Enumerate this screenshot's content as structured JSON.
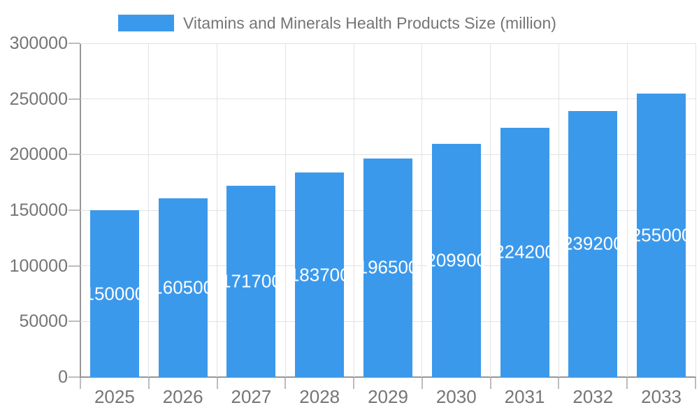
{
  "chart_data": {
    "type": "bar",
    "title": "Vitamins and Minerals Health Products Size (million)",
    "xlabel": "",
    "ylabel": "",
    "categories": [
      "2025",
      "2026",
      "2027",
      "2028",
      "2029",
      "2030",
      "2031",
      "2032",
      "2033"
    ],
    "values": [
      150000,
      160500,
      171700,
      183700,
      196500,
      209900,
      224200,
      239200,
      255000
    ],
    "bar_labels": [
      "150000",
      "160500",
      "171700",
      "183700",
      "196500",
      "209900",
      "224200",
      "239200",
      "255000"
    ],
    "ylim": [
      0,
      300000
    ],
    "ytick_step": 50000,
    "yticks": [
      "0",
      "50000",
      "100000",
      "150000",
      "200000",
      "250000",
      "300000"
    ],
    "grid": true,
    "legend_position": "top-center",
    "legend_entries": [
      {
        "label": "Vitamins and Minerals Health Products Size (million)",
        "color": "#3B99EC"
      }
    ],
    "colors": {
      "bar": "#3B99EC",
      "grid": "#E2E2E2",
      "axis": "#969696",
      "tick": "#BDBDBD",
      "tick_text": "#757575",
      "bar_label_text": "#FFFFFF",
      "background": "#FFFFFF"
    }
  }
}
